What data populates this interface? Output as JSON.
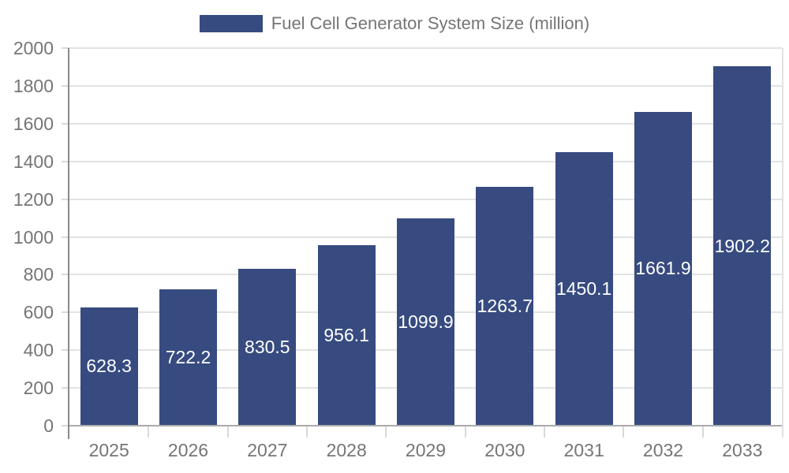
{
  "chart_data": {
    "type": "bar",
    "title": "Fuel Cell Generator System Size (million)",
    "legend": [
      "Fuel Cell Generator System Size (million)"
    ],
    "legend_position": "top",
    "categories": [
      "2025",
      "2026",
      "2027",
      "2028",
      "2029",
      "2030",
      "2031",
      "2032",
      "2033"
    ],
    "values": [
      628.3,
      722.2,
      830.5,
      956.1,
      1099.9,
      1263.7,
      1450.1,
      1661.9,
      1902.2
    ],
    "xlabel": "",
    "ylabel": "",
    "ylim": [
      0,
      2000
    ],
    "ytick_step": 200,
    "yticks": [
      0,
      200,
      400,
      600,
      800,
      1000,
      1200,
      1400,
      1600,
      1800,
      2000
    ],
    "grid": true,
    "bar_label_position": "inside-center",
    "colors": {
      "bar": "#374B80",
      "bar_label": "#FFFFFF",
      "axis_text": "#757575",
      "gridline": "#E2E2E2",
      "tick": "#D9D9D9",
      "y_axis_line": "#8A8A8A",
      "x_axis_line": "#ABABAB"
    }
  }
}
